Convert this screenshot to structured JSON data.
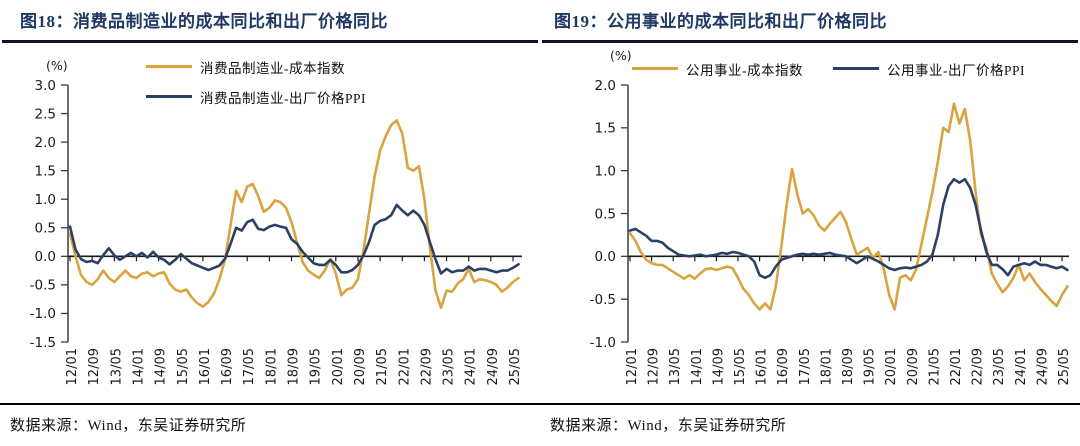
{
  "chart_data": [
    {
      "id": "figure-18",
      "type": "line",
      "title": "图18：消费品制造业的成本同比和出厂价格同比",
      "unit_label": "(%)",
      "source_note": "数据来源：Wind，东吴证券研究所",
      "ylim": [
        -1.5,
        3.0
      ],
      "y_ticks": [
        "3.0",
        "2.5",
        "2.0",
        "1.5",
        "1.0",
        "0.5",
        "0.0",
        "-0.5",
        "-1.0",
        "-1.5"
      ],
      "grid": false,
      "legend_position": "top-center-stacked",
      "x_tick_labels": [
        "12/01",
        "12/09",
        "13/05",
        "14/01",
        "14/09",
        "15/05",
        "16/01",
        "16/09",
        "17/05",
        "18/01",
        "18/09",
        "19/05",
        "20/01",
        "20/09",
        "21/05",
        "22/01",
        "22/09",
        "23/05",
        "24/01",
        "24/09",
        "25/05"
      ],
      "x": [
        "12/01",
        "12/03",
        "12/05",
        "12/07",
        "12/09",
        "12/11",
        "13/01",
        "13/03",
        "13/05",
        "13/07",
        "13/09",
        "13/11",
        "14/01",
        "14/03",
        "14/05",
        "14/07",
        "14/09",
        "14/11",
        "15/01",
        "15/03",
        "15/05",
        "15/07",
        "15/09",
        "15/11",
        "16/01",
        "16/03",
        "16/05",
        "16/07",
        "16/09",
        "16/11",
        "17/01",
        "17/03",
        "17/05",
        "17/07",
        "17/09",
        "17/11",
        "18/01",
        "18/03",
        "18/05",
        "18/07",
        "18/09",
        "18/11",
        "19/01",
        "19/03",
        "19/05",
        "19/07",
        "19/09",
        "19/11",
        "20/01",
        "20/03",
        "20/05",
        "20/07",
        "20/09",
        "20/11",
        "21/01",
        "21/03",
        "21/05",
        "21/07",
        "21/09",
        "21/11",
        "22/01",
        "22/03",
        "22/05",
        "22/07",
        "22/09",
        "22/11",
        "23/01",
        "23/03",
        "23/05",
        "23/07",
        "23/09",
        "23/11",
        "24/01",
        "24/03",
        "24/05",
        "24/07",
        "24/09",
        "24/11",
        "25/01",
        "25/03",
        "25/05",
        "25/07"
      ],
      "series": [
        {
          "name": "消费品制造业-成本指数",
          "color": "#D9A440",
          "data_name": "fig18-cost-index-line",
          "values": [
            0.4,
            0.0,
            -0.33,
            -0.45,
            -0.5,
            -0.4,
            -0.25,
            -0.38,
            -0.45,
            -0.35,
            -0.25,
            -0.35,
            -0.38,
            -0.3,
            -0.28,
            -0.35,
            -0.3,
            -0.28,
            -0.48,
            -0.58,
            -0.62,
            -0.58,
            -0.72,
            -0.82,
            -0.88,
            -0.8,
            -0.65,
            -0.4,
            -0.05,
            0.55,
            1.15,
            0.95,
            1.22,
            1.27,
            1.05,
            0.78,
            0.85,
            0.98,
            0.95,
            0.85,
            0.6,
            0.25,
            -0.1,
            -0.25,
            -0.32,
            -0.38,
            -0.25,
            -0.05,
            -0.3,
            -0.68,
            -0.58,
            -0.55,
            -0.4,
            0.1,
            0.75,
            1.4,
            1.85,
            2.1,
            2.3,
            2.38,
            2.15,
            1.55,
            1.5,
            1.58,
            1.0,
            0.15,
            -0.6,
            -0.9,
            -0.6,
            -0.62,
            -0.48,
            -0.4,
            -0.22,
            -0.45,
            -0.4,
            -0.42,
            -0.45,
            -0.5,
            -0.62,
            -0.55,
            -0.45,
            -0.38
          ]
        },
        {
          "name": "消费品制造业-出厂价格PPI",
          "color": "#2B4064",
          "data_name": "fig18-ppi-line",
          "values": [
            0.52,
            0.12,
            -0.05,
            -0.1,
            -0.08,
            -0.12,
            0.02,
            0.14,
            0.02,
            -0.06,
            0.0,
            0.06,
            0.0,
            0.06,
            -0.02,
            0.08,
            -0.02,
            -0.06,
            -0.14,
            -0.06,
            0.04,
            -0.04,
            -0.12,
            -0.16,
            -0.2,
            -0.24,
            -0.2,
            -0.16,
            -0.04,
            0.22,
            0.5,
            0.45,
            0.6,
            0.64,
            0.48,
            0.46,
            0.52,
            0.55,
            0.52,
            0.5,
            0.3,
            0.22,
            0.08,
            -0.02,
            -0.12,
            -0.15,
            -0.15,
            -0.06,
            -0.15,
            -0.28,
            -0.28,
            -0.24,
            -0.15,
            0.02,
            0.25,
            0.55,
            0.62,
            0.65,
            0.72,
            0.9,
            0.8,
            0.72,
            0.8,
            0.72,
            0.55,
            0.25,
            -0.05,
            -0.3,
            -0.22,
            -0.28,
            -0.25,
            -0.25,
            -0.18,
            -0.25,
            -0.22,
            -0.22,
            -0.25,
            -0.28,
            -0.25,
            -0.25,
            -0.2,
            -0.14
          ]
        }
      ]
    },
    {
      "id": "figure-19",
      "type": "line",
      "title": "图19：公用事业的成本同比和出厂价格同比",
      "unit_label": "(%)",
      "source_note": "数据来源：Wind，东吴证券研究所",
      "ylim": [
        -1.0,
        2.0
      ],
      "y_ticks": [
        "2.0",
        "1.5",
        "1.0",
        "0.5",
        "0.0",
        "-0.5",
        "-1.0"
      ],
      "grid": false,
      "legend_position": "top-inline",
      "x_tick_labels": [
        "12/01",
        "12/09",
        "13/05",
        "14/01",
        "14/09",
        "15/05",
        "16/01",
        "16/09",
        "17/05",
        "18/01",
        "18/09",
        "19/05",
        "20/01",
        "20/09",
        "21/05",
        "22/01",
        "22/09",
        "23/05",
        "24/01",
        "24/09",
        "25/05"
      ],
      "x": [
        "12/01",
        "12/03",
        "12/05",
        "12/07",
        "12/09",
        "12/11",
        "13/01",
        "13/03",
        "13/05",
        "13/07",
        "13/09",
        "13/11",
        "14/01",
        "14/03",
        "14/05",
        "14/07",
        "14/09",
        "14/11",
        "15/01",
        "15/03",
        "15/05",
        "15/07",
        "15/09",
        "15/11",
        "16/01",
        "16/03",
        "16/05",
        "16/07",
        "16/09",
        "16/11",
        "17/01",
        "17/03",
        "17/05",
        "17/07",
        "17/09",
        "17/11",
        "18/01",
        "18/03",
        "18/05",
        "18/07",
        "18/09",
        "18/11",
        "19/01",
        "19/03",
        "19/05",
        "19/07",
        "19/09",
        "19/11",
        "20/01",
        "20/03",
        "20/05",
        "20/07",
        "20/09",
        "20/11",
        "21/01",
        "21/03",
        "21/05",
        "21/07",
        "21/09",
        "21/11",
        "22/01",
        "22/03",
        "22/05",
        "22/07",
        "22/09",
        "22/11",
        "23/01",
        "23/03",
        "23/05",
        "23/07",
        "23/09",
        "23/11",
        "24/01",
        "24/03",
        "24/05",
        "24/07",
        "24/09",
        "24/11",
        "25/01",
        "25/03",
        "25/05",
        "25/07"
      ],
      "series": [
        {
          "name": "公用事业-成本指数",
          "color": "#D9A440",
          "data_name": "fig19-cost-index-line",
          "values": [
            0.27,
            0.18,
            0.05,
            -0.04,
            -0.08,
            -0.1,
            -0.1,
            -0.14,
            -0.18,
            -0.22,
            -0.26,
            -0.22,
            -0.26,
            -0.2,
            -0.15,
            -0.14,
            -0.16,
            -0.14,
            -0.12,
            -0.14,
            -0.25,
            -0.38,
            -0.45,
            -0.55,
            -0.62,
            -0.55,
            -0.62,
            -0.35,
            0.1,
            0.6,
            1.02,
            0.72,
            0.5,
            0.55,
            0.48,
            0.36,
            0.3,
            0.38,
            0.45,
            0.52,
            0.4,
            0.2,
            0.02,
            0.06,
            0.1,
            -0.02,
            0.05,
            -0.15,
            -0.45,
            -0.62,
            -0.25,
            -0.22,
            -0.28,
            -0.15,
            0.15,
            0.45,
            0.75,
            1.1,
            1.5,
            1.45,
            1.78,
            1.55,
            1.72,
            1.35,
            0.75,
            0.25,
            0.1,
            -0.2,
            -0.32,
            -0.42,
            -0.35,
            -0.25,
            -0.1,
            -0.28,
            -0.2,
            -0.3,
            -0.38,
            -0.45,
            -0.52,
            -0.58,
            -0.45,
            -0.35
          ]
        },
        {
          "name": "公用事业-出厂价格PPI",
          "color": "#2B4064",
          "data_name": "fig19-ppi-line",
          "values": [
            0.3,
            0.32,
            0.28,
            0.24,
            0.18,
            0.18,
            0.16,
            0.1,
            0.06,
            0.02,
            0.01,
            0.0,
            0.01,
            0.02,
            0.0,
            0.01,
            0.02,
            0.04,
            0.03,
            0.05,
            0.04,
            0.02,
            0.0,
            -0.06,
            -0.22,
            -0.25,
            -0.22,
            -0.12,
            -0.04,
            -0.02,
            0.0,
            0.02,
            0.03,
            0.02,
            0.03,
            0.02,
            0.03,
            0.04,
            0.02,
            0.01,
            0.0,
            -0.04,
            -0.08,
            -0.04,
            0.0,
            -0.03,
            -0.06,
            -0.1,
            -0.14,
            -0.16,
            -0.14,
            -0.13,
            -0.14,
            -0.12,
            -0.1,
            -0.06,
            0.02,
            0.25,
            0.6,
            0.82,
            0.9,
            0.86,
            0.9,
            0.8,
            0.6,
            0.3,
            0.05,
            -0.1,
            -0.1,
            -0.15,
            -0.22,
            -0.12,
            -0.1,
            -0.08,
            -0.1,
            -0.06,
            -0.1,
            -0.1,
            -0.12,
            -0.14,
            -0.12,
            -0.16
          ]
        }
      ]
    }
  ]
}
